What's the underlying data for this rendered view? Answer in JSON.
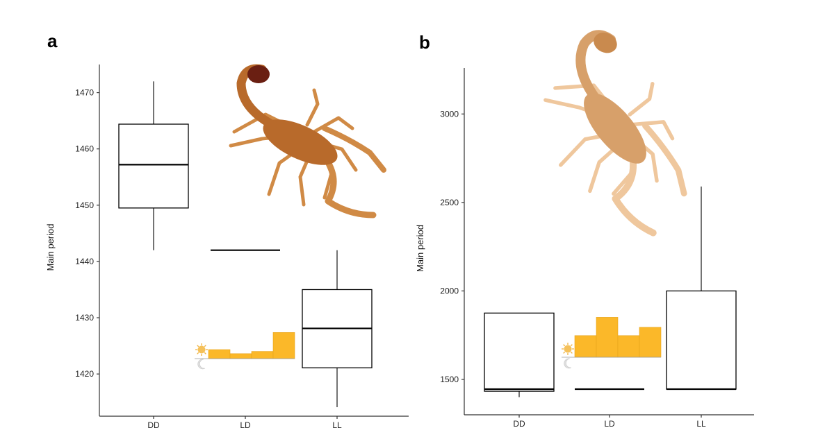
{
  "chart_data": [
    {
      "panel": "a",
      "type": "box",
      "ylabel": "Main period",
      "categories": [
        "DD",
        "LD",
        "LL"
      ],
      "yticks": [
        1420,
        1430,
        1440,
        1450,
        1460,
        1470
      ],
      "ylim": [
        1412.5,
        1475
      ],
      "boxes": [
        {
          "category": "DD",
          "whisker_low": 1442,
          "q1": 1449.5,
          "median": 1457.2,
          "q3": 1464.4,
          "whisker_high": 1472
        },
        {
          "category": "LD",
          "whisker_low": 1442,
          "q1": 1442,
          "median": 1442,
          "q3": 1442,
          "whisker_high": 1442
        },
        {
          "category": "LL",
          "whisker_low": 1414.1,
          "q1": 1421.1,
          "median": 1428.1,
          "q3": 1435,
          "whisker_high": 1442
        }
      ],
      "light_profile_bars": [
        1,
        0.55,
        0.8,
        2.9
      ],
      "icons": [
        "sun-icon",
        "moon-icon"
      ],
      "species_photo": {
        "body_color": "#b86a2b",
        "limb_color": "#d08a45",
        "tail_tip_color": "#6a1f12"
      }
    },
    {
      "panel": "b",
      "type": "box",
      "ylabel": "Main period",
      "categories": [
        "DD",
        "LD",
        "LL"
      ],
      "yticks": [
        1500,
        2000,
        2500,
        3000
      ],
      "ylim": [
        1300,
        3260
      ],
      "boxes": [
        {
          "category": "DD",
          "whisker_low": 1400,
          "q1": 1433,
          "median": 1445,
          "q3": 1875,
          "whisker_high": 1875
        },
        {
          "category": "LD",
          "whisker_low": 1445,
          "q1": 1445,
          "median": 1445,
          "q3": 1445,
          "whisker_high": 1445
        },
        {
          "category": "LL",
          "whisker_low": 1445,
          "q1": 1445,
          "median": 1445,
          "q3": 2000,
          "whisker_high": 2590
        }
      ],
      "light_profile_bars": [
        1.95,
        3.6,
        1.95,
        2.7
      ],
      "icons": [
        "sun-icon",
        "moon-icon"
      ],
      "species_photo": {
        "body_color": "#d7a06a",
        "limb_color": "#efc79d",
        "tail_tip_color": "#c98a4e"
      }
    }
  ]
}
